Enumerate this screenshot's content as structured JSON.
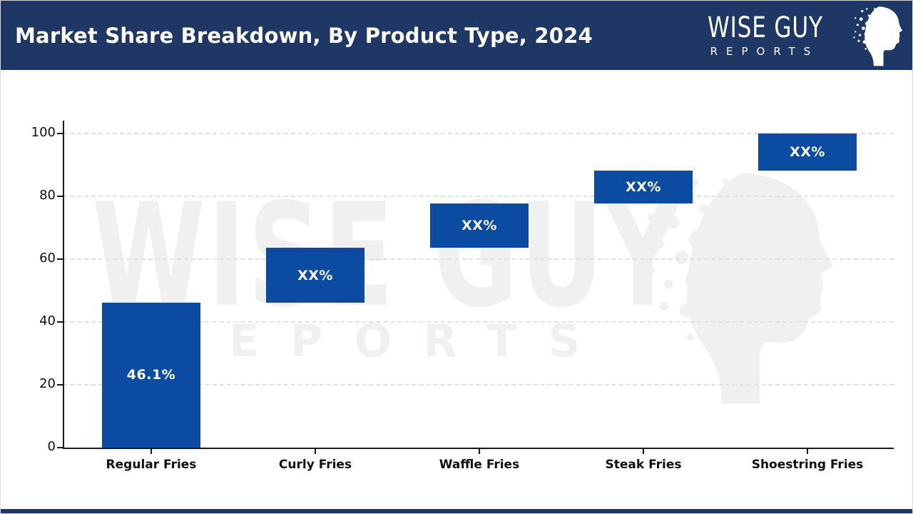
{
  "header": {
    "title": "Market Share Breakdown, By Product Type, 2024",
    "logo": {
      "name": "WISE GUY",
      "sub": "REPORTS"
    }
  },
  "watermark": {
    "word": "WISE GUY",
    "reports": "REPORTS"
  },
  "colors": {
    "header_bg": "#1f3764",
    "bar": "#0b4ba1",
    "bar_label": "#ffffff",
    "watermark": "#f0f0f1",
    "gridline": "#e2e2e2"
  },
  "chart_data": {
    "type": "bar",
    "subtype": "waterfall",
    "title": "Market Share Breakdown, By Product Type, 2024",
    "categories": [
      "Regular Fries",
      "Curly Fries",
      "Waffle Fries",
      "Steak Fries",
      "Shoestring Fries"
    ],
    "bars": [
      {
        "category": "Regular Fries",
        "start": 0,
        "end": 46.1,
        "label": "46.1%"
      },
      {
        "category": "Curly Fries",
        "start": 46.1,
        "end": 63.5,
        "label": "XX%"
      },
      {
        "category": "Waffle Fries",
        "start": 63.5,
        "end": 77.6,
        "label": "XX%"
      },
      {
        "category": "Steak Fries",
        "start": 77.6,
        "end": 88,
        "label": "XX%"
      },
      {
        "category": "Shoestring Fries",
        "start": 88,
        "end": 100,
        "label": "XX%"
      }
    ],
    "xlabel": "",
    "ylabel": "",
    "y_ticks": [
      0,
      20,
      40,
      60,
      80,
      100
    ],
    "ylim": [
      0,
      104
    ],
    "grid": "horizontal-dashed",
    "legend": "none"
  }
}
